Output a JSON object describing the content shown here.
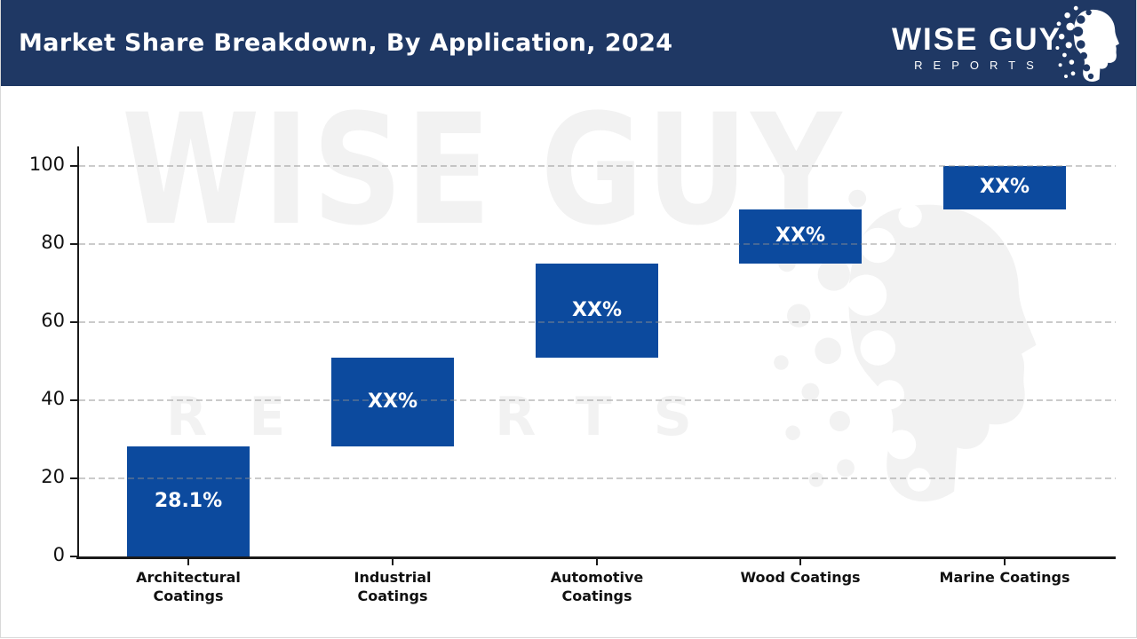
{
  "header": {
    "title": "Market Share Breakdown, By Application, 2024",
    "background_color": "#1f3864",
    "logo": {
      "line1": "WISE GUY",
      "line2": "REPORTS",
      "face_icon": "dotted-face-profile-icon"
    }
  },
  "watermark": {
    "line1": "WISE GUY",
    "line2": "REPORTS",
    "face_icon": "dotted-face-profile-icon"
  },
  "chart_data": {
    "type": "bar",
    "subtype": "floating-waterfall",
    "title": "Market Share Breakdown, By Application, 2024",
    "xlabel": "",
    "ylabel": "",
    "ylim": [
      0,
      100
    ],
    "yticks": [
      0,
      20,
      40,
      60,
      80,
      100
    ],
    "grid": "horizontal-dashed",
    "legend": "none",
    "bar_color": "#0c4a9e",
    "bar_label_color": "#ffffff",
    "categories": [
      "Architectural\nCoatings",
      "Industrial\nCoatings",
      "Automotive\nCoatings",
      "Wood Coatings",
      "Marine Coatings"
    ],
    "segments": [
      {
        "category": "Architectural Coatings",
        "start": 0,
        "end": 28.1,
        "label": "28.1%"
      },
      {
        "category": "Industrial Coatings",
        "start": 28.1,
        "end": 51.0,
        "label": "XX%"
      },
      {
        "category": "Automotive Coatings",
        "start": 51.0,
        "end": 75.0,
        "label": "XX%"
      },
      {
        "category": "Wood Coatings",
        "start": 75.0,
        "end": 88.9,
        "label": "XX%"
      },
      {
        "category": "Marine Coatings",
        "start": 88.9,
        "end": 100.0,
        "label": "XX%"
      }
    ]
  }
}
